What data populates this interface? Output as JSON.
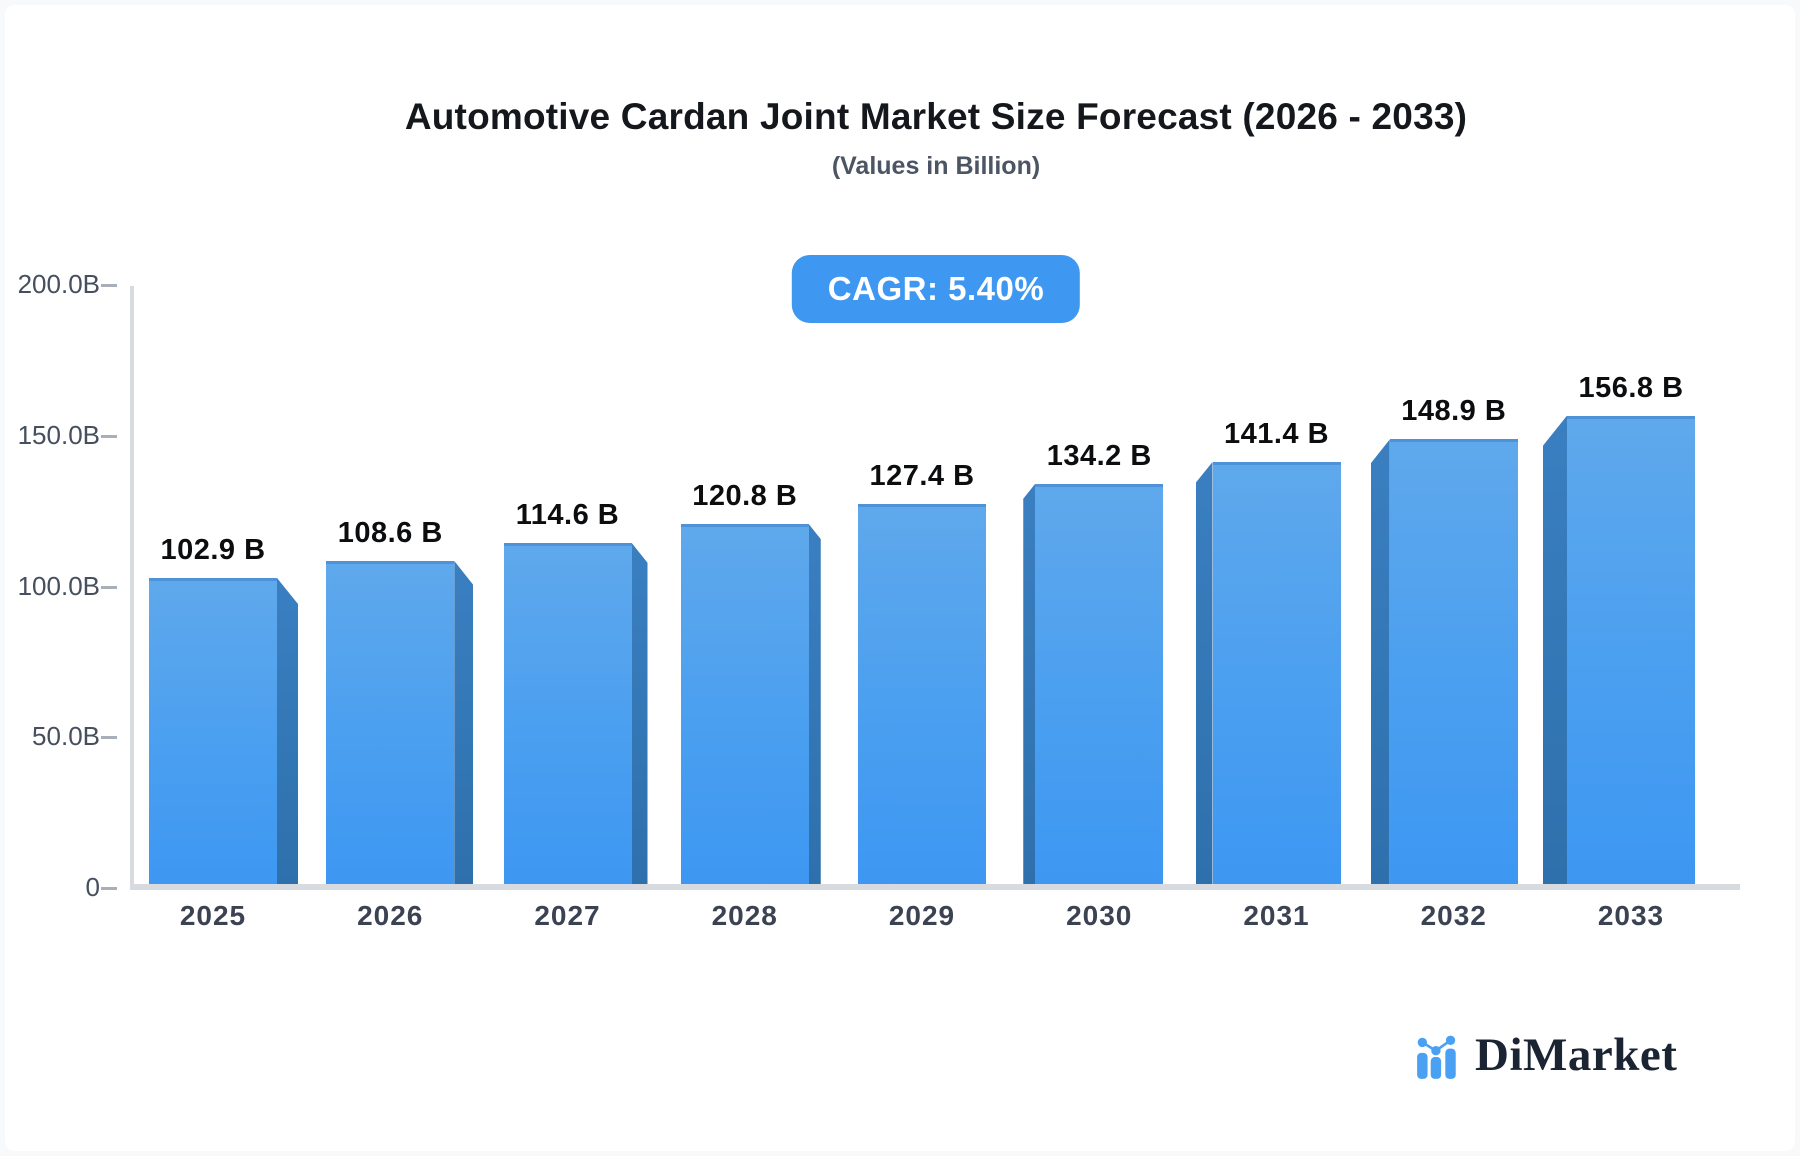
{
  "header": {
    "title": "Automotive Cardan Joint Market Size Forecast (2026 - 2033)",
    "subtitle": "(Values in Billion)",
    "cagr_label": "CAGR: 5.40%"
  },
  "chart_data": {
    "type": "bar",
    "title": "Automotive Cardan Joint Market Size Forecast (2026 - 2033)",
    "subtitle": "(Values in Billion)",
    "unit": "Billion",
    "cagr": "5.40%",
    "categories": [
      "2025",
      "2026",
      "2027",
      "2028",
      "2029",
      "2030",
      "2031",
      "2032",
      "2033"
    ],
    "values": [
      102.9,
      108.6,
      114.6,
      120.8,
      127.4,
      134.2,
      141.4,
      148.9,
      156.8
    ],
    "value_labels": [
      "102.9 B",
      "108.6 B",
      "114.6 B",
      "120.8 B",
      "127.4 B",
      "134.2 B",
      "141.4 B",
      "148.9 B",
      "156.8 B"
    ],
    "xlabel": "",
    "ylabel": "",
    "ylim": [
      0,
      200
    ],
    "grid": false,
    "legend": false,
    "y_ticks": [
      {
        "label": "0",
        "value": 0
      },
      {
        "label": "50.0B",
        "value": 50
      },
      {
        "label": "100.0B",
        "value": 100
      },
      {
        "label": "150.0B",
        "value": 150
      },
      {
        "label": "200.0B",
        "value": 200
      }
    ]
  },
  "branding": {
    "name": "DiMarket",
    "icon": "bar-chart-logo-icon"
  },
  "colors": {
    "bar_front_top": "#5fa8ec",
    "bar_front_bottom": "#3d97f2",
    "bar_side": "#2e70ac",
    "badge_background": "#3e97f0",
    "badge_text": "#ffffff",
    "axis_line": "#d7dade",
    "title_text": "#14171c",
    "subtitle_text": "#4b5563",
    "axis_label_text": "#454f5e",
    "category_text": "#3b4352",
    "logo_blue": "#4aa1f4",
    "logo_navy": "#1b2433"
  }
}
